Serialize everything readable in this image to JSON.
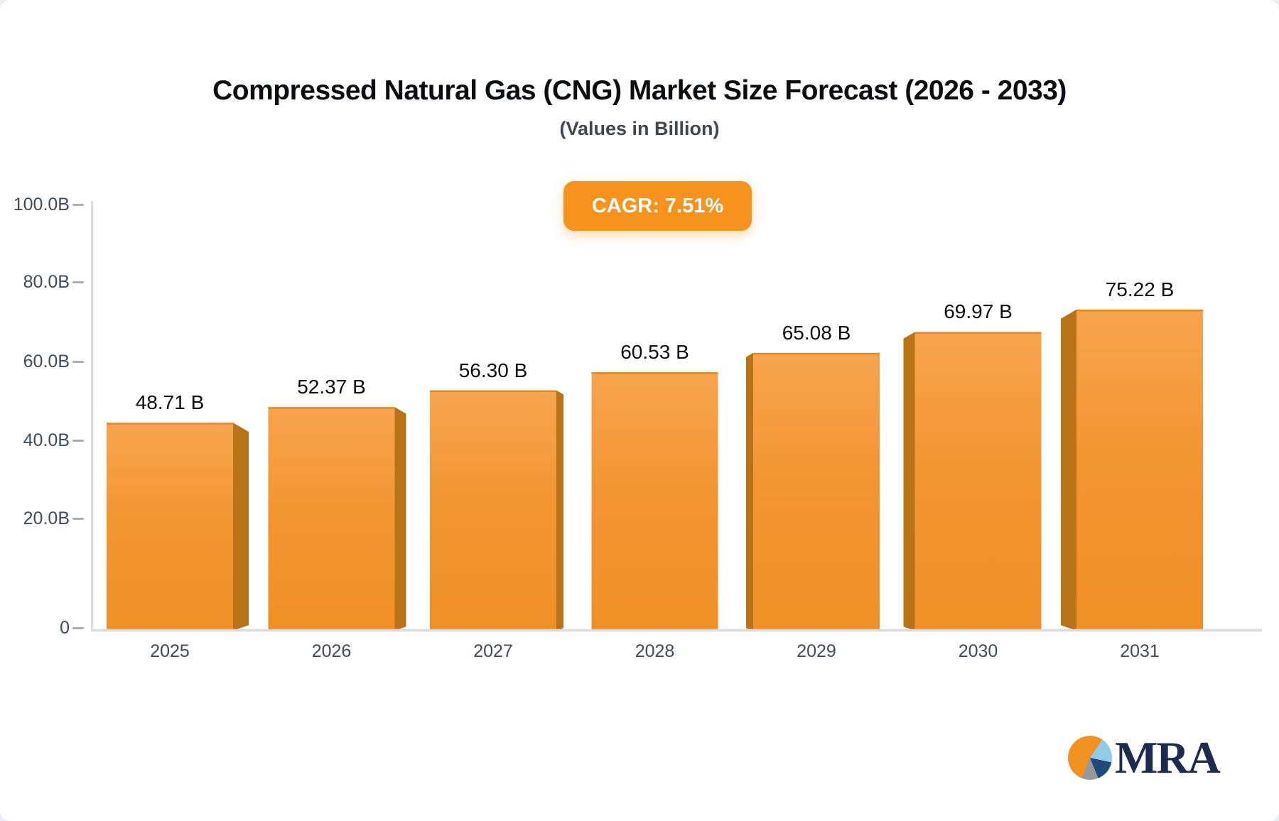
{
  "header": {
    "title": "Compressed Natural Gas (CNG) Market Size Forecast (2026 - 2033)",
    "subtitle": "(Values in Billion)"
  },
  "badge": {
    "label": "CAGR: 7.51%",
    "background": "#F6921E"
  },
  "chart_data": {
    "type": "bar",
    "title": "Compressed Natural Gas (CNG) Market Size Forecast (2026 - 2033)",
    "subtitle": "(Values in Billion)",
    "cagr": "7.51%",
    "categories": [
      "2025",
      "2026",
      "2027",
      "2028",
      "2029",
      "2030",
      "2031"
    ],
    "values": [
      48.71,
      52.37,
      56.3,
      60.53,
      65.08,
      69.97,
      75.22
    ],
    "value_labels": [
      "48.71 B",
      "52.37 B",
      "56.30 B",
      "60.53 B",
      "65.08 B",
      "69.97 B",
      "75.22 B"
    ],
    "unit": "Billion",
    "ylim": [
      0,
      100
    ],
    "y_ticks": [
      "100.0B",
      "80.0B",
      "60.0B",
      "40.0B",
      "20.0B",
      "0"
    ],
    "grid": false,
    "legend_position": "none",
    "bar_color": "#F0912B",
    "bar_color_light": "#F7A44E",
    "bar_side_color": "#B97317",
    "bar_edge_color": "#E2871F",
    "axis_color": "#D8DBE0",
    "tick_color": "#A8AFBA",
    "label_color": "#3E4A5E"
  },
  "branding": {
    "logo_text": "MRA",
    "logo_navy": "#1D2B4F",
    "pie_orange": "#F0921E",
    "pie_light_blue": "#92CBE8",
    "pie_dark_blue": "#1E4B7B",
    "pie_gray": "#98999B"
  }
}
